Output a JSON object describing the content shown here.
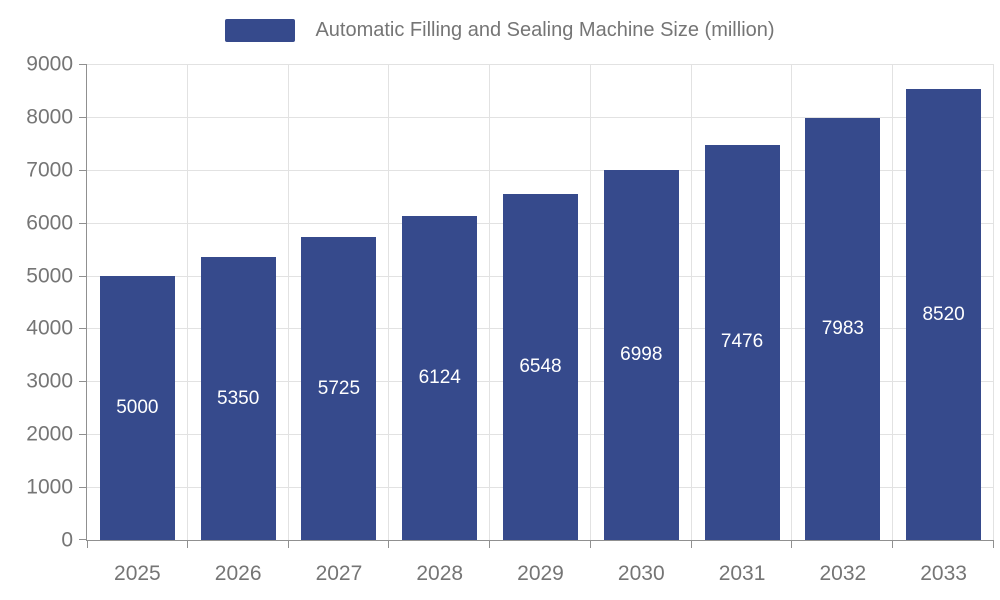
{
  "chart_data": {
    "type": "bar",
    "title": "Automatic Filling and Sealing Machine Size (million)",
    "legend": {
      "label": "Automatic Filling and Sealing Machine Size (million)",
      "position": "top"
    },
    "categories": [
      "2025",
      "2026",
      "2027",
      "2028",
      "2029",
      "2030",
      "2031",
      "2032",
      "2033"
    ],
    "series": [
      {
        "name": "Automatic Filling and Sealing Machine Size (million)",
        "values": [
          5000,
          5350,
          5725,
          6124,
          6548,
          6998,
          7476,
          7983,
          8520
        ]
      }
    ],
    "value_labels_visible": true,
    "xlabel": "",
    "ylabel": "",
    "ylim": [
      0,
      9000
    ],
    "ytick_step": 1000,
    "yticks": [
      0,
      1000,
      2000,
      3000,
      4000,
      5000,
      6000,
      7000,
      8000,
      9000
    ],
    "grid": true,
    "colors": {
      "bar": "#364A8C",
      "grid": "#E2E2E2",
      "axis": "#909090",
      "tick_text": "#757575",
      "legend_text": "#757575",
      "value_text": "#FFFFFF",
      "background": "#FFFFFF"
    }
  }
}
